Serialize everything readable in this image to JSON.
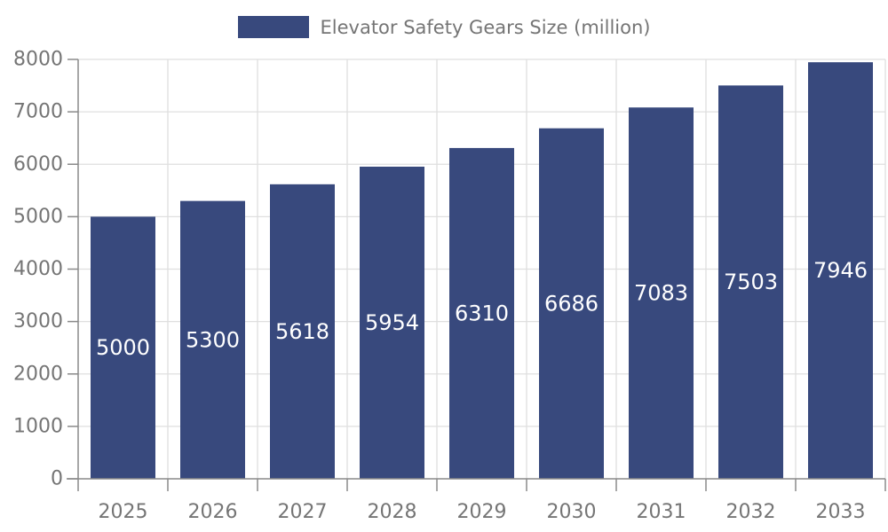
{
  "chart_data": {
    "type": "bar",
    "title": "Elevator Safety Gears Size (million)",
    "legend_entries": [
      "Elevator Safety Gears Size (million)"
    ],
    "legend_position": "top-center",
    "categories": [
      "2025",
      "2026",
      "2027",
      "2028",
      "2029",
      "2030",
      "2031",
      "2032",
      "2033"
    ],
    "values": [
      5000,
      5300,
      5618,
      5954,
      6310,
      6686,
      7083,
      7503,
      7946
    ],
    "bar_labels": [
      "5000",
      "5300",
      "5618",
      "5954",
      "6310",
      "6686",
      "7083",
      "7503",
      "7946"
    ],
    "xlabel": "",
    "ylabel": "",
    "ylim": [
      0,
      8000
    ],
    "yticks": [
      0,
      1000,
      2000,
      3000,
      4000,
      5000,
      6000,
      7000,
      8000
    ],
    "grid": true
  },
  "colors": {
    "bar": "#38497D",
    "grid": "#DFDFDF",
    "axis": "#8A8A8A",
    "tick_text": "#757575",
    "bar_label_text": "#FFFFFF",
    "background": "#FFFFFF"
  }
}
